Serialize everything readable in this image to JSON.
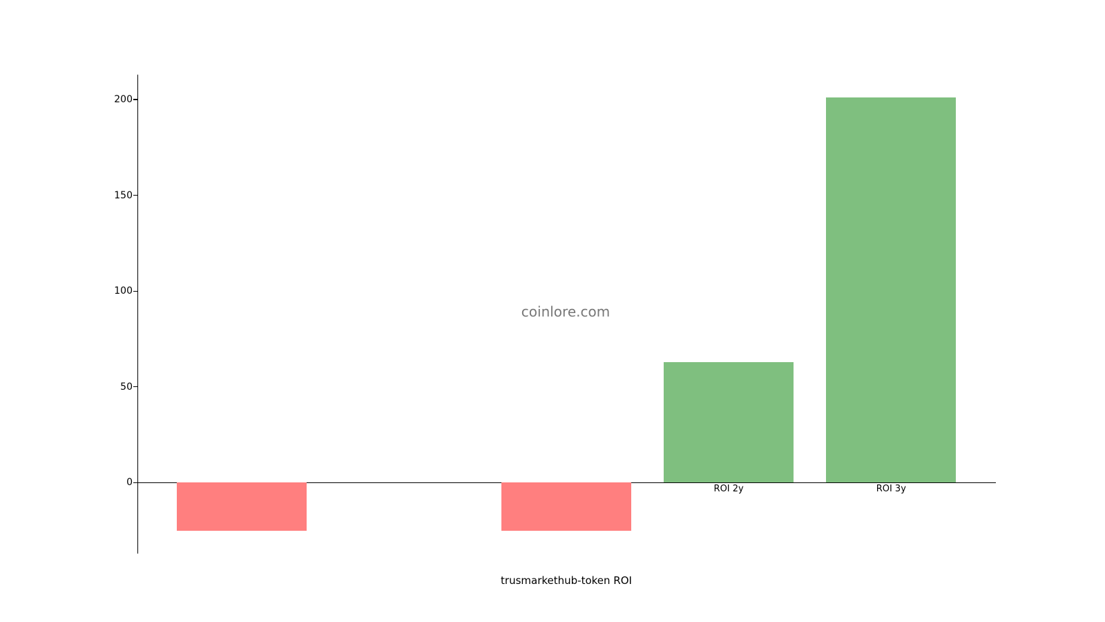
{
  "watermark": {
    "text": "coinlore.com",
    "color": "#777777"
  },
  "chart_data": {
    "type": "bar",
    "title": "",
    "xlabel": "trusmarkethub-token ROI",
    "ylabel": "",
    "categories": [
      "",
      "",
      "",
      "ROI 2y",
      "ROI 3y"
    ],
    "values": [
      -25,
      0,
      -25,
      63,
      201
    ],
    "yticks": [
      0,
      50,
      100,
      150,
      200
    ],
    "ylim": [
      -37,
      213
    ],
    "grid": false,
    "legend": false,
    "colors": {
      "positive": "#7fbf7f",
      "negative": "#ff7f7f",
      "axis": "#000000",
      "tick_text": "#000000"
    }
  }
}
